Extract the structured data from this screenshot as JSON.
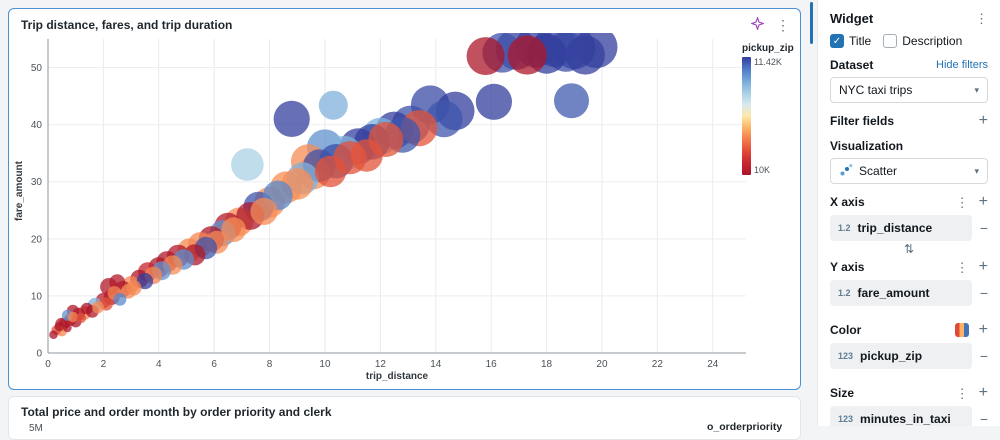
{
  "chart_data": {
    "type": "scatter",
    "title": "Trip distance, fares, and trip duration",
    "xlabel": "trip_distance",
    "ylabel": "fare_amount",
    "color_field": "pickup_zip",
    "size_field": "minutes_in_taxi",
    "xlim": [
      0,
      25.2
    ],
    "ylim": [
      0,
      55
    ],
    "x_ticks": [
      0,
      2,
      4,
      6,
      8,
      10,
      12,
      14,
      16,
      18,
      20,
      22,
      24
    ],
    "y_ticks": [
      0,
      10,
      20,
      30,
      40,
      50
    ],
    "color_domain": [
      10000,
      11420
    ],
    "legend_labels": {
      "max": "11.42K",
      "min": "10K"
    },
    "colormap_stops": [
      "#a81529",
      "#c9242f",
      "#e04a35",
      "#f47b4d",
      "#fdb366",
      "#fee8a9",
      "#d6e9f0",
      "#a6cfe4",
      "#74a9d8",
      "#4e79c5",
      "#333d9c"
    ],
    "points": [
      [
        0.2,
        3.2,
        6,
        10009
      ],
      [
        0.3,
        4.0,
        8,
        10302
      ],
      [
        0.4,
        4.6,
        7,
        10025
      ],
      [
        0.5,
        3.8,
        9,
        10453
      ],
      [
        0.6,
        5.2,
        10,
        10019
      ],
      [
        0.7,
        4.4,
        6,
        10036
      ],
      [
        0.8,
        5.8,
        12,
        10128
      ],
      [
        0.9,
        6.3,
        9,
        10467
      ],
      [
        1.0,
        5.5,
        11,
        10003
      ],
      [
        1.1,
        6.8,
        13,
        10029
      ],
      [
        1.2,
        6.1,
        8,
        10305
      ],
      [
        0.5,
        5.0,
        14,
        10040
      ],
      [
        0.7,
        6.6,
        10,
        11201
      ],
      [
        0.9,
        7.4,
        12,
        10032
      ],
      [
        1.3,
        7.0,
        15,
        10456
      ],
      [
        1.4,
        7.8,
        11,
        10014
      ],
      [
        1.6,
        7.3,
        13,
        10034
      ],
      [
        1.7,
        8.4,
        16,
        11104
      ],
      [
        1.8,
        8.0,
        12,
        10472
      ],
      [
        2.0,
        9.2,
        17,
        10065
      ],
      [
        2.1,
        8.6,
        14,
        10301
      ],
      [
        2.3,
        9.8,
        18,
        10027
      ],
      [
        2.4,
        10.5,
        15,
        10455
      ],
      [
        2.6,
        9.4,
        13,
        11230
      ],
      [
        2.7,
        11.2,
        19,
        10039
      ],
      [
        2.9,
        10.8,
        16,
        10462
      ],
      [
        3.0,
        12.0,
        20,
        10453
      ],
      [
        2.2,
        11.6,
        21,
        10033
      ],
      [
        2.5,
        12.4,
        18,
        10044
      ],
      [
        3.1,
        11.4,
        17,
        10458
      ],
      [
        3.3,
        13.0,
        22,
        10023
      ],
      [
        3.5,
        12.6,
        19,
        11420
      ],
      [
        3.6,
        14.2,
        24,
        10128
      ],
      [
        3.8,
        13.6,
        21,
        10452
      ],
      [
        4.0,
        15.0,
        26,
        10025
      ],
      [
        4.1,
        14.4,
        23,
        11201
      ],
      [
        4.3,
        16.0,
        27,
        10031
      ],
      [
        4.5,
        15.4,
        24,
        10468
      ],
      [
        4.7,
        17.0,
        29,
        10037
      ],
      [
        4.9,
        16.4,
        26,
        11215
      ],
      [
        5.1,
        18.0,
        31,
        10460
      ],
      [
        5.3,
        17.2,
        27,
        10026
      ],
      [
        5.5,
        19.0,
        33,
        10454
      ],
      [
        5.7,
        18.4,
        29,
        11368
      ],
      [
        5.9,
        20.0,
        34,
        10030
      ],
      [
        6.1,
        19.4,
        30,
        10463
      ],
      [
        6.3,
        21.0,
        35,
        11209
      ],
      [
        6.5,
        22.2,
        37,
        10040
      ],
      [
        6.7,
        21.6,
        33,
        10471
      ],
      [
        6.9,
        23.0,
        39,
        10465
      ],
      [
        7.2,
        33.0,
        46,
        10980
      ],
      [
        7.3,
        24.0,
        38,
        10032
      ],
      [
        7.6,
        25.6,
        42,
        11361
      ],
      [
        7.8,
        24.8,
        37,
        10466
      ],
      [
        8.0,
        26.4,
        43,
        10469
      ],
      [
        8.3,
        27.6,
        41,
        11234
      ],
      [
        8.6,
        29.0,
        45,
        10475
      ],
      [
        8.8,
        41.0,
        52,
        11414
      ],
      [
        9.0,
        29.6,
        44,
        10473
      ],
      [
        9.4,
        33.5,
        50,
        10470
      ],
      [
        9.2,
        30.6,
        45,
        11106
      ],
      [
        9.6,
        31.6,
        47,
        10474
      ],
      [
        9.8,
        32.8,
        46,
        11370
      ],
      [
        10.0,
        36.0,
        52,
        11208
      ],
      [
        10.2,
        31.8,
        44,
        10304
      ],
      [
        10.4,
        33.6,
        49,
        11377
      ],
      [
        10.7,
        35.0,
        50,
        11101
      ],
      [
        10.9,
        34.2,
        47,
        10306
      ],
      [
        11.2,
        36.2,
        52,
        11416
      ],
      [
        11.5,
        34.6,
        46,
        10309
      ],
      [
        11.7,
        37.0,
        51,
        11420
      ],
      [
        12.0,
        38.0,
        53,
        11105
      ],
      [
        10.3,
        43.4,
        40,
        11102
      ],
      [
        12.2,
        37.4,
        50,
        10312
      ],
      [
        12.5,
        39.0,
        54,
        11420
      ],
      [
        12.8,
        38.2,
        51,
        11356
      ],
      [
        13.1,
        40.0,
        55,
        11373
      ],
      [
        13.4,
        39.4,
        52,
        10314
      ],
      [
        13.8,
        43.5,
        56,
        11385
      ],
      [
        14.3,
        41.0,
        53,
        11358
      ],
      [
        14.7,
        42.4,
        56,
        11429
      ],
      [
        15.8,
        52.0,
        55,
        10019
      ],
      [
        16.1,
        44.0,
        52,
        11418
      ],
      [
        16.4,
        52.6,
        58,
        11367
      ],
      [
        16.9,
        53.2,
        60,
        11412
      ],
      [
        17.3,
        52.2,
        57,
        10023
      ],
      [
        17.6,
        53.6,
        60,
        11407
      ],
      [
        18.0,
        52.4,
        58,
        11419
      ],
      [
        18.3,
        53.8,
        62,
        11411
      ],
      [
        18.7,
        52.8,
        59,
        11379
      ],
      [
        19.0,
        53.4,
        62,
        11417
      ],
      [
        19.4,
        52.2,
        57,
        11413
      ],
      [
        19.8,
        53.6,
        62,
        11421
      ],
      [
        18.9,
        44.2,
        50,
        11354
      ]
    ]
  },
  "bottom_card": {
    "title": "Total price and order month by order priority and clerk",
    "y_tick_label": "5M",
    "legend_title": "o_orderpriority"
  },
  "panel": {
    "header": "Widget",
    "checkboxes": {
      "title": "Title",
      "description": "Description"
    },
    "dataset": {
      "label": "Dataset",
      "action": "Hide filters",
      "value": "NYC taxi trips"
    },
    "filter_fields_label": "Filter fields",
    "visualization": {
      "label": "Visualization",
      "value": "Scatter"
    },
    "x_axis": {
      "label": "X axis",
      "type_icon": "1.2",
      "field": "trip_distance"
    },
    "y_axis": {
      "label": "Y axis",
      "type_icon": "1.2",
      "field": "fare_amount"
    },
    "color": {
      "label": "Color",
      "type_icon": "123",
      "field": "pickup_zip"
    },
    "size": {
      "label": "Size",
      "type_icon": "123",
      "field": "minutes_in_taxi"
    }
  },
  "colors": {
    "accent_blue": "#2272b4",
    "card_border_selected": "#4b8fd4"
  }
}
